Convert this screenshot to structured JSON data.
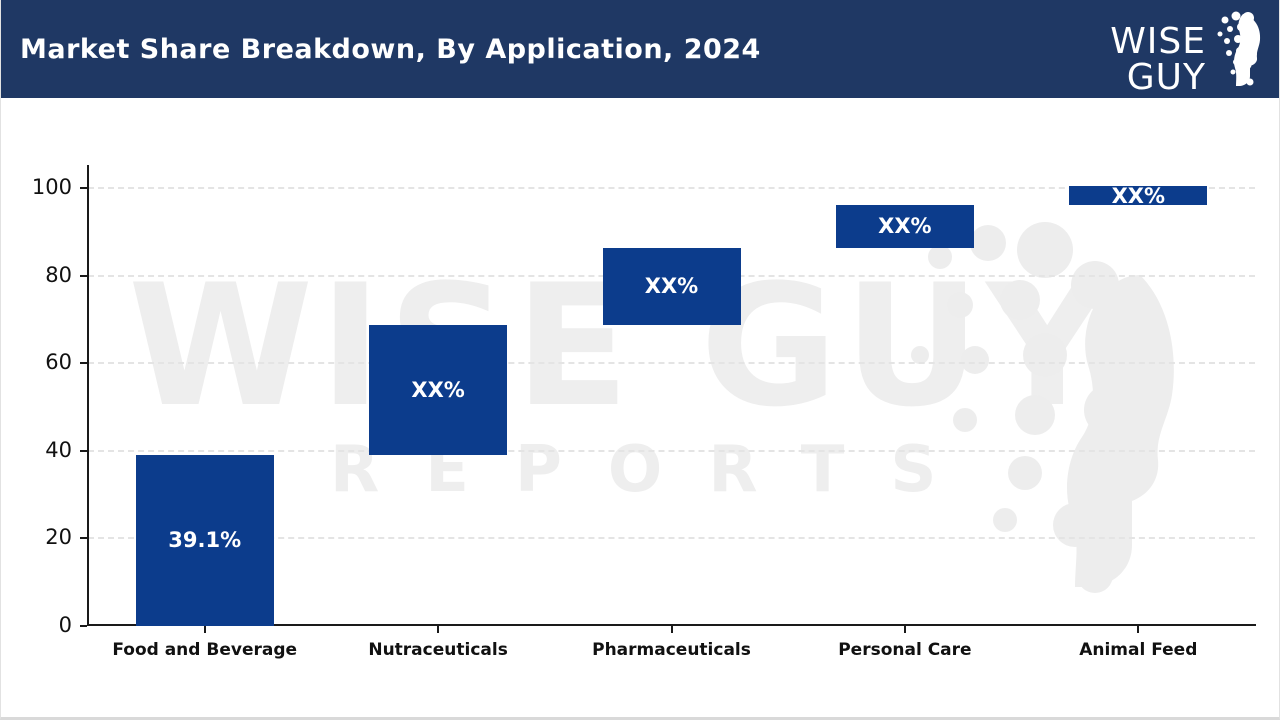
{
  "header": {
    "title": "Market Share Breakdown, By Application, 2024"
  },
  "logo": {
    "line1": "WISE GUY",
    "line2": "REPORTS",
    "head_icon": "dotted-head-profile"
  },
  "watermark": {
    "line1": "WISE GUY",
    "line2": "REPORTS"
  },
  "colors": {
    "header_bg": "#1f3864",
    "bar_fill": "#0c3c8c",
    "bar_label_text": "#ffffff",
    "axis": "#1a1a1a",
    "gridline": "#e4e4e4",
    "watermark": "#eeeeee"
  },
  "chart_data": {
    "type": "bar",
    "subtype": "waterfall",
    "title": "Market Share Breakdown, By Application, 2024",
    "categories": [
      "Food and Beverage",
      "Nutraceuticals",
      "Pharmaceuticals",
      "Personal Care",
      "Animal Feed"
    ],
    "segments": [
      {
        "category": "Food and Beverage",
        "start": 0,
        "end": 39.1,
        "label": "39.1%"
      },
      {
        "category": "Nutraceuticals",
        "start": 39.1,
        "end": 68.7,
        "label": "XX%"
      },
      {
        "category": "Pharmaceuticals",
        "start": 68.7,
        "end": 86.4,
        "label": "XX%"
      },
      {
        "category": "Personal Care",
        "start": 86.4,
        "end": 96.1,
        "label": "XX%"
      },
      {
        "category": "Animal Feed",
        "start": 96.1,
        "end": 100.4,
        "label": "XX%"
      }
    ],
    "y_ticks": [
      0,
      20,
      40,
      60,
      80,
      100
    ],
    "ylim": [
      0,
      105
    ],
    "xlabel": "",
    "ylabel": "",
    "grid": "dashed-horizontal",
    "legend": "none"
  }
}
